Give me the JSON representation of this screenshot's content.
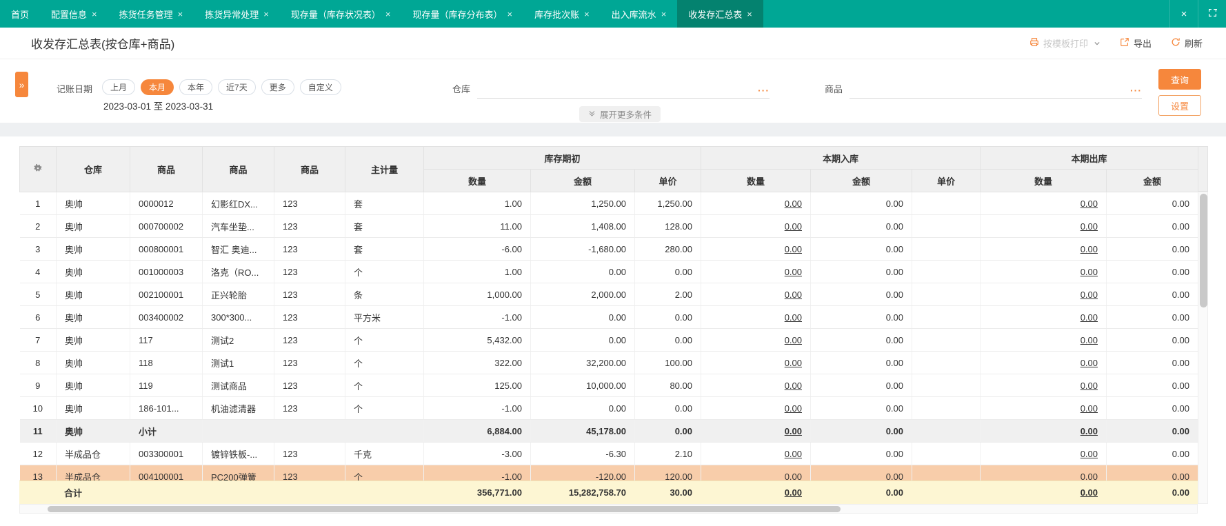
{
  "tabbar": {
    "close_glyph": "×",
    "tabs": [
      {
        "label": "首页",
        "closable": false,
        "active": false
      },
      {
        "label": "配置信息",
        "closable": true,
        "active": false
      },
      {
        "label": "拣货任务管理",
        "closable": true,
        "active": false
      },
      {
        "label": "拣货异常处理",
        "closable": true,
        "active": false
      },
      {
        "label": "现存量（库存状况表）",
        "closable": true,
        "active": false
      },
      {
        "label": "现存量（库存分布表）",
        "closable": true,
        "active": false
      },
      {
        "label": "库存批次账",
        "closable": true,
        "active": false
      },
      {
        "label": "出入库流水",
        "closable": true,
        "active": false
      },
      {
        "label": "收发存汇总表",
        "closable": true,
        "active": true
      }
    ]
  },
  "titlebar": {
    "title": "收发存汇总表(按仓库+商品)",
    "print_label": "按模板打印",
    "export_label": "导出",
    "refresh_label": "刷新"
  },
  "filters": {
    "date_label": "记账日期",
    "date_pills": [
      {
        "label": "上月",
        "selected": false
      },
      {
        "label": "本月",
        "selected": true
      },
      {
        "label": "本年",
        "selected": false
      },
      {
        "label": "近7天",
        "selected": false
      },
      {
        "label": "更多",
        "selected": false
      },
      {
        "label": "自定义",
        "selected": false
      }
    ],
    "date_range": "2023-03-01 至 2023-03-31",
    "warehouse_label": "仓库",
    "warehouse_value": "",
    "product_label": "商品",
    "product_value": "",
    "ellipsis": "···",
    "search_label": "查询",
    "settings_label": "设置",
    "expand_label": "展开更多条件"
  },
  "colors": {
    "topbar_teal": "#00a795",
    "active_tab_teal": "#04826f",
    "accent_orange": "#f6873c",
    "negative_red": "#f5222d",
    "subtotal_gray": "#f0f0f0",
    "highlight_row": "#f8cdaa",
    "total_row_yellow": "#fdf6d3"
  },
  "table": {
    "base_columns": [
      "",
      "仓库",
      "商品",
      "商品",
      "商品",
      "主计量"
    ],
    "groups": [
      {
        "label": "库存期初",
        "subs": [
          "数量",
          "金额",
          "单价"
        ]
      },
      {
        "label": "本期入库",
        "subs": [
          "数量",
          "金额",
          "单价"
        ]
      },
      {
        "label": "本期出库",
        "subs": [
          "数量",
          "金额"
        ]
      }
    ],
    "rows": [
      {
        "num": "1",
        "wh": "奥帅",
        "code": "0000012",
        "name": "幻影红DX...",
        "spec": "123",
        "unit": "套",
        "bq": "1.00",
        "ba": "1,250.00",
        "bp": "1,250.00",
        "iq": "0.00",
        "ia": "0.00",
        "ip": "",
        "oq": "0.00",
        "oa": "0.00",
        "type": "normal"
      },
      {
        "num": "2",
        "wh": "奥帅",
        "code": "000700002",
        "name": "汽车坐垫...",
        "spec": "123",
        "unit": "套",
        "bq": "11.00",
        "ba": "1,408.00",
        "bp": "128.00",
        "iq": "0.00",
        "ia": "0.00",
        "ip": "",
        "oq": "0.00",
        "oa": "0.00",
        "type": "normal"
      },
      {
        "num": "3",
        "wh": "奥帅",
        "code": "000800001",
        "name": "智汇 奥迪...",
        "spec": "123",
        "unit": "套",
        "bq": "-6.00",
        "ba": "-1,680.00",
        "bp": "280.00",
        "iq": "0.00",
        "ia": "0.00",
        "ip": "",
        "oq": "0.00",
        "oa": "0.00",
        "type": "normal"
      },
      {
        "num": "4",
        "wh": "奥帅",
        "code": "001000003",
        "name": "洛克（RO...",
        "spec": "123",
        "unit": "个",
        "bq": "1.00",
        "ba": "0.00",
        "bp": "0.00",
        "iq": "0.00",
        "ia": "0.00",
        "ip": "",
        "oq": "0.00",
        "oa": "0.00",
        "type": "normal"
      },
      {
        "num": "5",
        "wh": "奥帅",
        "code": "002100001",
        "name": "正兴轮胎",
        "spec": "123",
        "unit": "条",
        "bq": "1,000.00",
        "ba": "2,000.00",
        "bp": "2.00",
        "iq": "0.00",
        "ia": "0.00",
        "ip": "",
        "oq": "0.00",
        "oa": "0.00",
        "type": "normal"
      },
      {
        "num": "6",
        "wh": "奥帅",
        "code": "003400002",
        "name": "300*300...",
        "spec": "123",
        "unit": "平方米",
        "bq": "-1.00",
        "ba": "0.00",
        "bp": "0.00",
        "iq": "0.00",
        "ia": "0.00",
        "ip": "",
        "oq": "0.00",
        "oa": "0.00",
        "type": "normal"
      },
      {
        "num": "7",
        "wh": "奥帅",
        "code": "117",
        "name": "测试2",
        "spec": "123",
        "unit": "个",
        "bq": "5,432.00",
        "ba": "0.00",
        "bp": "0.00",
        "iq": "0.00",
        "ia": "0.00",
        "ip": "",
        "oq": "0.00",
        "oa": "0.00",
        "type": "normal"
      },
      {
        "num": "8",
        "wh": "奥帅",
        "code": "118",
        "name": "测试1",
        "spec": "123",
        "unit": "个",
        "bq": "322.00",
        "ba": "32,200.00",
        "bp": "100.00",
        "iq": "0.00",
        "ia": "0.00",
        "ip": "",
        "oq": "0.00",
        "oa": "0.00",
        "type": "normal"
      },
      {
        "num": "9",
        "wh": "奥帅",
        "code": "119",
        "name": "测试商品",
        "spec": "123",
        "unit": "个",
        "bq": "125.00",
        "ba": "10,000.00",
        "bp": "80.00",
        "iq": "0.00",
        "ia": "0.00",
        "ip": "",
        "oq": "0.00",
        "oa": "0.00",
        "type": "normal"
      },
      {
        "num": "10",
        "wh": "奥帅",
        "code": "186-101...",
        "name": "机油滤清器",
        "spec": "123",
        "unit": "个",
        "bq": "-1.00",
        "ba": "0.00",
        "bp": "0.00",
        "iq": "0.00",
        "ia": "0.00",
        "ip": "",
        "oq": "0.00",
        "oa": "0.00",
        "type": "normal"
      },
      {
        "num": "11",
        "wh": "奥帅",
        "code": "小计",
        "name": "",
        "spec": "",
        "unit": "",
        "bq": "6,884.00",
        "ba": "45,178.00",
        "bp": "0.00",
        "iq": "0.00",
        "ia": "0.00",
        "ip": "",
        "oq": "0.00",
        "oa": "0.00",
        "type": "subtotal"
      },
      {
        "num": "12",
        "wh": "半成品仓",
        "code": "003300001",
        "name": "镀锌铁板-...",
        "spec": "123",
        "unit": "千克",
        "bq": "-3.00",
        "ba": "-6.30",
        "bp": "2.10",
        "iq": "0.00",
        "ia": "0.00",
        "ip": "",
        "oq": "0.00",
        "oa": "0.00",
        "type": "normal"
      },
      {
        "num": "13",
        "wh": "半成品仓",
        "code": "004100001",
        "name": "PC200弹簧",
        "spec": "123",
        "unit": "个",
        "bq": "-1.00",
        "ba": "-120.00",
        "bp": "120.00",
        "iq": "0.00",
        "ia": "0.00",
        "ip": "",
        "oq": "0.00",
        "oa": "0.00",
        "type": "highlight"
      }
    ],
    "footer": {
      "label": "合计",
      "bq": "356,771.00",
      "ba": "15,282,758.70",
      "bp": "30.00",
      "iq": "0.00",
      "ia": "0.00",
      "ip": "",
      "oq": "0.00",
      "oa": "0.00"
    }
  }
}
